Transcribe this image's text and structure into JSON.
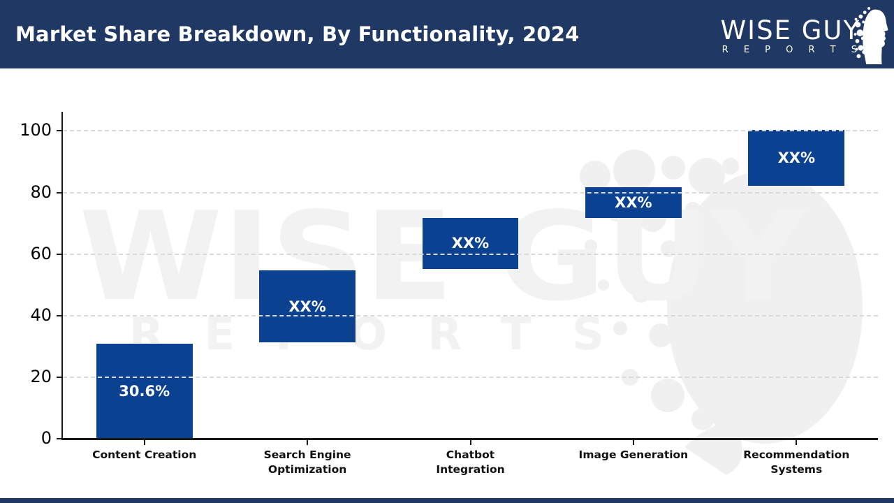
{
  "header": {
    "title": "Market Share Breakdown, By Functionality, 2024",
    "logo": {
      "line1": "WISE GUY",
      "line2": "R E P O R T S"
    }
  },
  "watermark": {
    "line1": "WISE GUY",
    "line2": "REPORTS"
  },
  "colors": {
    "navy": "#1f3864",
    "bar": "#0a4191",
    "grid": "#d9d9d9",
    "axis": "#1a1a1a",
    "watermark": "#f2f2f2",
    "text": "#111111"
  },
  "chart_data": {
    "type": "bar",
    "subtype": "waterfall",
    "title": "Market Share Breakdown, By Functionality, 2024",
    "xlabel": "",
    "ylabel": "",
    "ylim": [
      0,
      106
    ],
    "yticks": [
      0,
      20,
      40,
      60,
      80,
      100
    ],
    "grid": "dashed horizontal",
    "legend": "none",
    "categories": [
      "Content Creation",
      "Search Engine\nOptimization",
      "Chatbot\nIntegration",
      "Image Generation",
      "Recommendation\nSystems"
    ],
    "segments": [
      {
        "category": "Content Creation",
        "start": 0,
        "end": 30.6,
        "label": "30.6%"
      },
      {
        "category": "Search Engine\nOptimization",
        "start": 31,
        "end": 54.5,
        "label": "XX%"
      },
      {
        "category": "Chatbot\nIntegration",
        "start": 55,
        "end": 71.5,
        "label": "XX%"
      },
      {
        "category": "Image Generation",
        "start": 71.5,
        "end": 81.5,
        "label": "XX%"
      },
      {
        "category": "Recommendation\nSystems",
        "start": 82,
        "end": 100,
        "label": "XX%"
      }
    ]
  }
}
